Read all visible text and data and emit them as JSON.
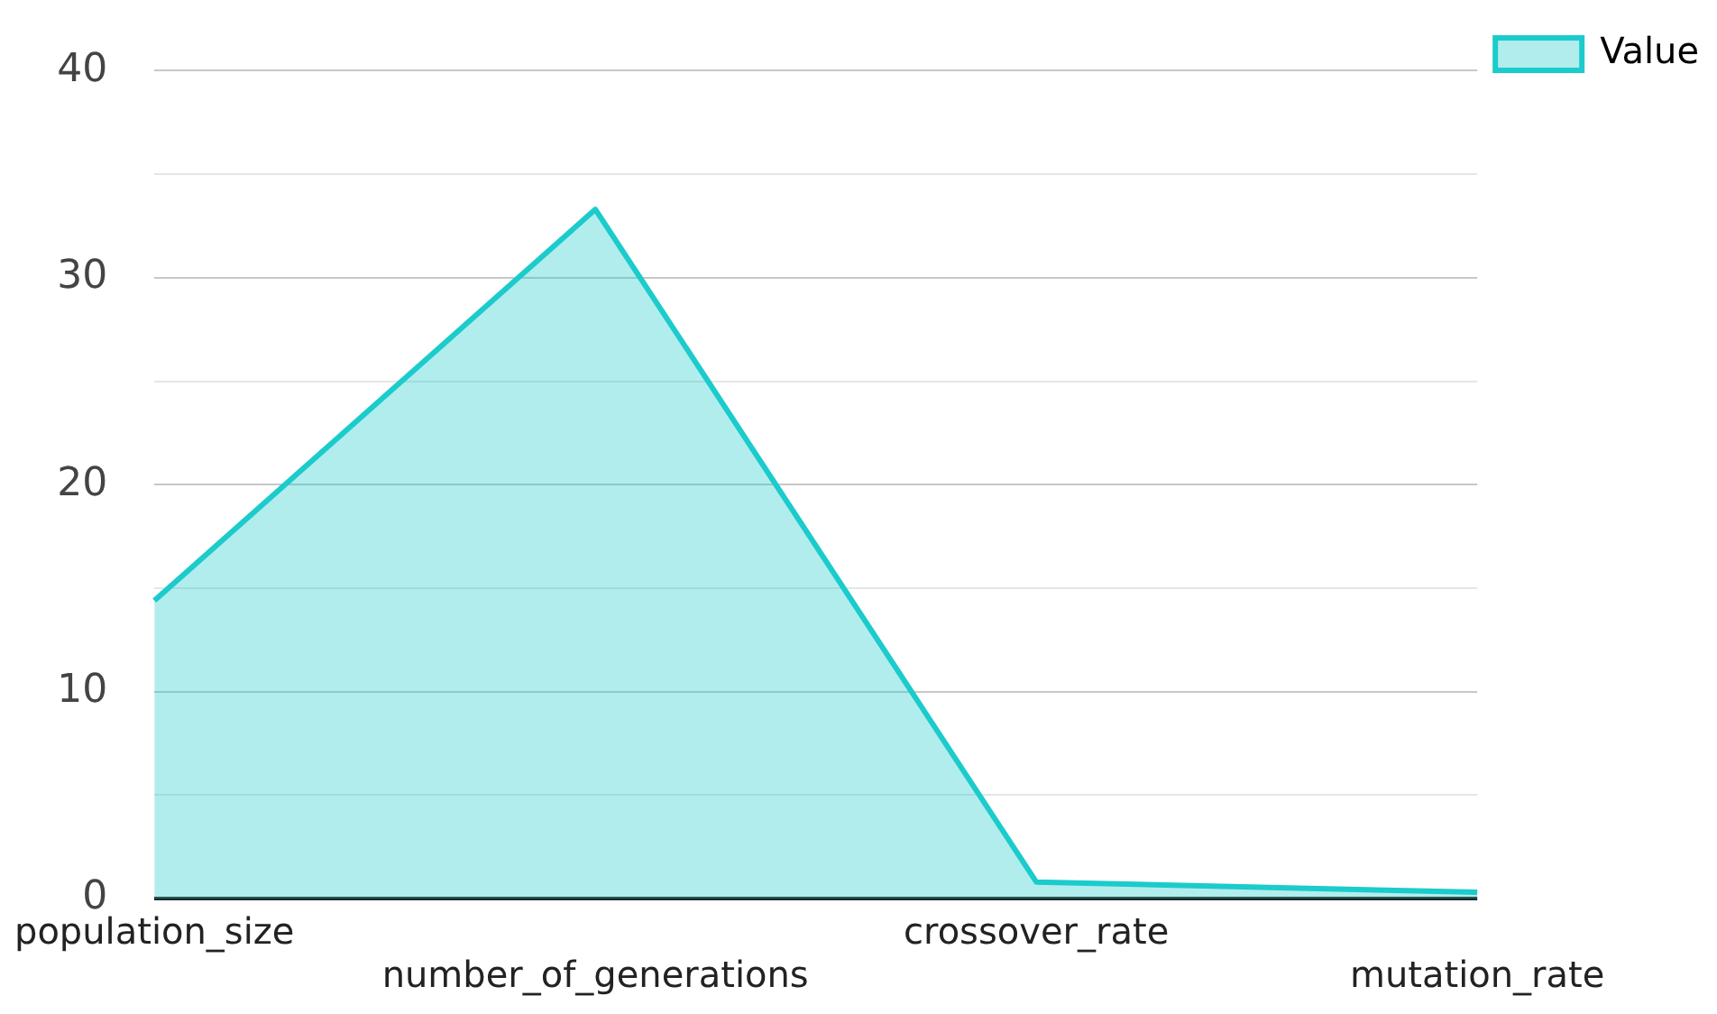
{
  "chart_data": {
    "type": "area",
    "categories": [
      "population_size",
      "number_of_generations",
      "crossover_rate",
      "mutation_rate"
    ],
    "series": [
      {
        "name": "Value",
        "color": "#1ccbcb",
        "values": [
          14.4,
          33.3,
          0.8,
          0.3
        ]
      }
    ],
    "ylim": [
      0,
      40
    ],
    "yticks": [
      0,
      {
        "value": 5,
        "label": null
      },
      10,
      {
        "value": 15,
        "label": null
      },
      20,
      {
        "value": 25,
        "label": null
      },
      30,
      {
        "value": 35,
        "label": null
      },
      40
    ],
    "grid": "y",
    "legend": "top right"
  }
}
